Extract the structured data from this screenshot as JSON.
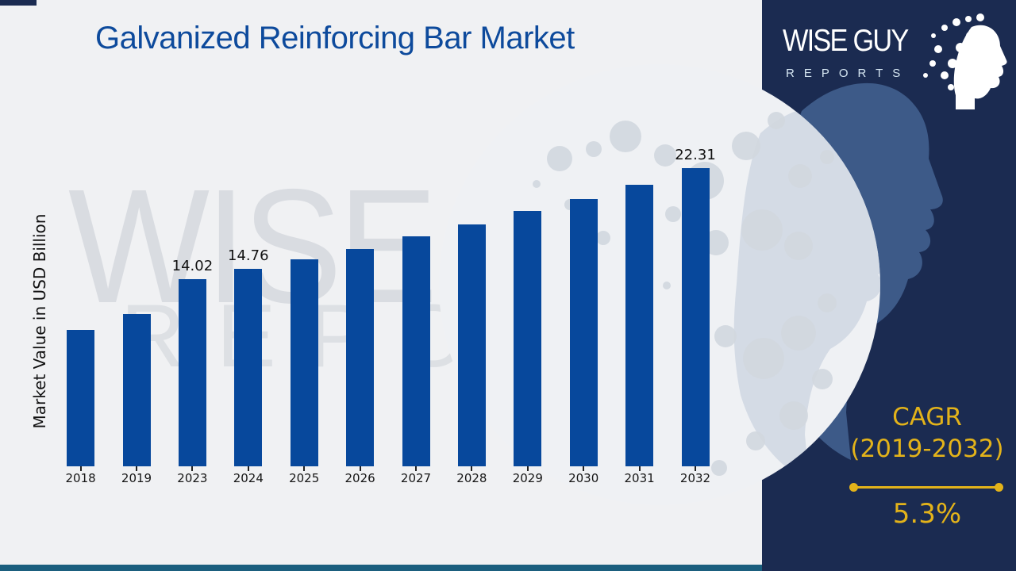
{
  "page": {
    "background": "#f0f1f3",
    "bottom_bar_color": "#1b5f7e",
    "top_left_chip_color": "#1b2b51",
    "panel_navy": "#1b2b51"
  },
  "header": {
    "title": "Galvanized Reinforcing Bar Market",
    "title_color": "#0d4a9c"
  },
  "brand_logo": {
    "name_line": "WISE GUY",
    "sub_line": "REPORTS",
    "background": "#1b2b51",
    "face_icon": "dotted-face-profile"
  },
  "watermark": {
    "line1": "WISE GUY",
    "line2": "REPORTS"
  },
  "cagr_panel": {
    "label": "CAGR",
    "range": "(2019-2032)",
    "value": "5.3%",
    "accent_color": "#e3b31a"
  },
  "chart_data": {
    "type": "bar",
    "title": "Galvanized Reinforcing Bar Market",
    "xlabel": "",
    "ylabel": "Market Value in USD Billion",
    "categories": [
      "2018",
      "2019",
      "2023",
      "2024",
      "2025",
      "2026",
      "2027",
      "2028",
      "2029",
      "2030",
      "2031",
      "2032"
    ],
    "values": [
      10.2,
      11.4,
      14.02,
      14.76,
      15.5,
      16.3,
      17.2,
      18.1,
      19.1,
      20.0,
      21.1,
      22.31
    ],
    "bar_labels": [
      "",
      "",
      "14.02",
      "14.76",
      "",
      "",
      "",
      "",
      "",
      "",
      "",
      "22.31"
    ],
    "bar_color": "#07489c",
    "ylim": [
      0,
      24
    ],
    "grid": false,
    "legend": "none"
  }
}
